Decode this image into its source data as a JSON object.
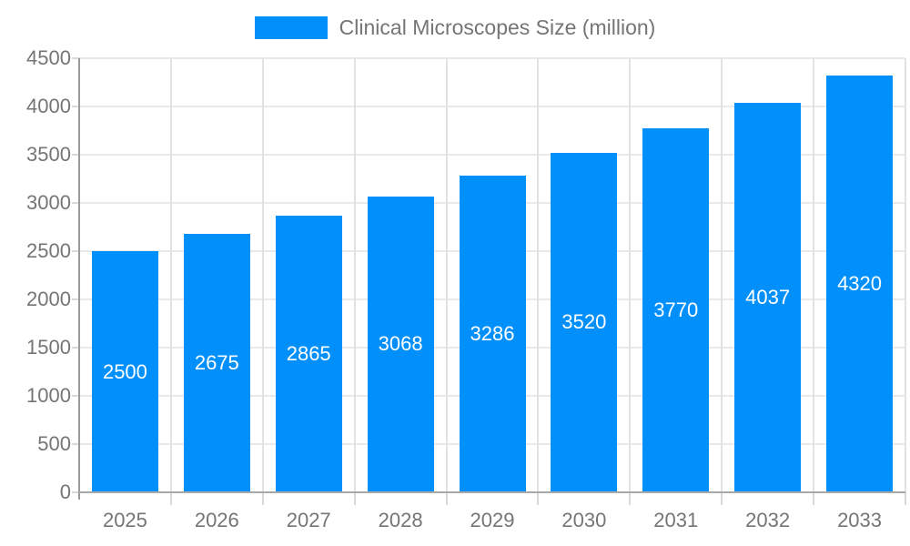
{
  "legend": {
    "label": "Clinical Microscopes Size (million)"
  },
  "chart_data": {
    "type": "bar",
    "title": "Clinical Microscopes Size (million)",
    "categories": [
      "2025",
      "2026",
      "2027",
      "2028",
      "2029",
      "2030",
      "2031",
      "2032",
      "2033"
    ],
    "values": [
      2500,
      2675,
      2865,
      3068,
      3286,
      3520,
      3770,
      4037,
      4320
    ],
    "value_labels": [
      "2500",
      "2675",
      "2865",
      "3068",
      "3286",
      "3520",
      "3770",
      "4037",
      "4320"
    ],
    "xlabel": "",
    "ylabel": "",
    "ylim": [
      0,
      4500
    ],
    "ytick_step": 500,
    "yticks": [
      0,
      500,
      1000,
      1500,
      2000,
      2500,
      3000,
      3500,
      4000,
      4500
    ],
    "grid": true,
    "legend_position": "top-center",
    "bar_color": "#008FFB",
    "bar_value_label_color": "#ffffff",
    "axis_text_color": "#757575",
    "gridline_color": "#e9e9e9",
    "axis_line_color": "#9a9a9a"
  }
}
